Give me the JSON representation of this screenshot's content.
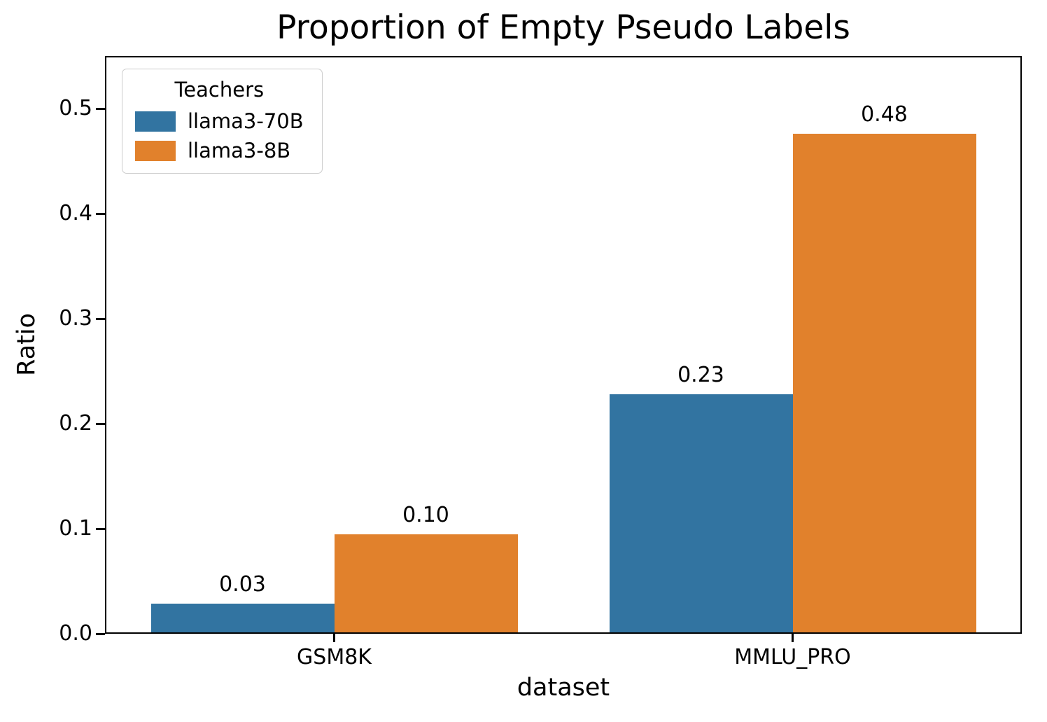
{
  "chart_data": {
    "type": "bar",
    "title": "Proportion of Empty Pseudo Labels",
    "xlabel": "dataset",
    "ylabel": "Ratio",
    "categories": [
      "GSM8K",
      "MMLU_PRO"
    ],
    "series": [
      {
        "name": "llama3-70B",
        "color": "#3274a1",
        "values": [
          0.029,
          0.228
        ],
        "data_labels": [
          "0.03",
          "0.23"
        ]
      },
      {
        "name": "llama3-8B",
        "color": "#e1812c",
        "values": [
          0.095,
          0.476
        ],
        "data_labels": [
          "0.10",
          "0.48"
        ]
      }
    ],
    "legend": {
      "title": "Teachers",
      "position": "upper left"
    },
    "ylim": [
      0,
      0.55
    ],
    "yticks": [
      "0.0",
      "0.1",
      "0.2",
      "0.3",
      "0.4",
      "0.5"
    ],
    "grid": false
  }
}
